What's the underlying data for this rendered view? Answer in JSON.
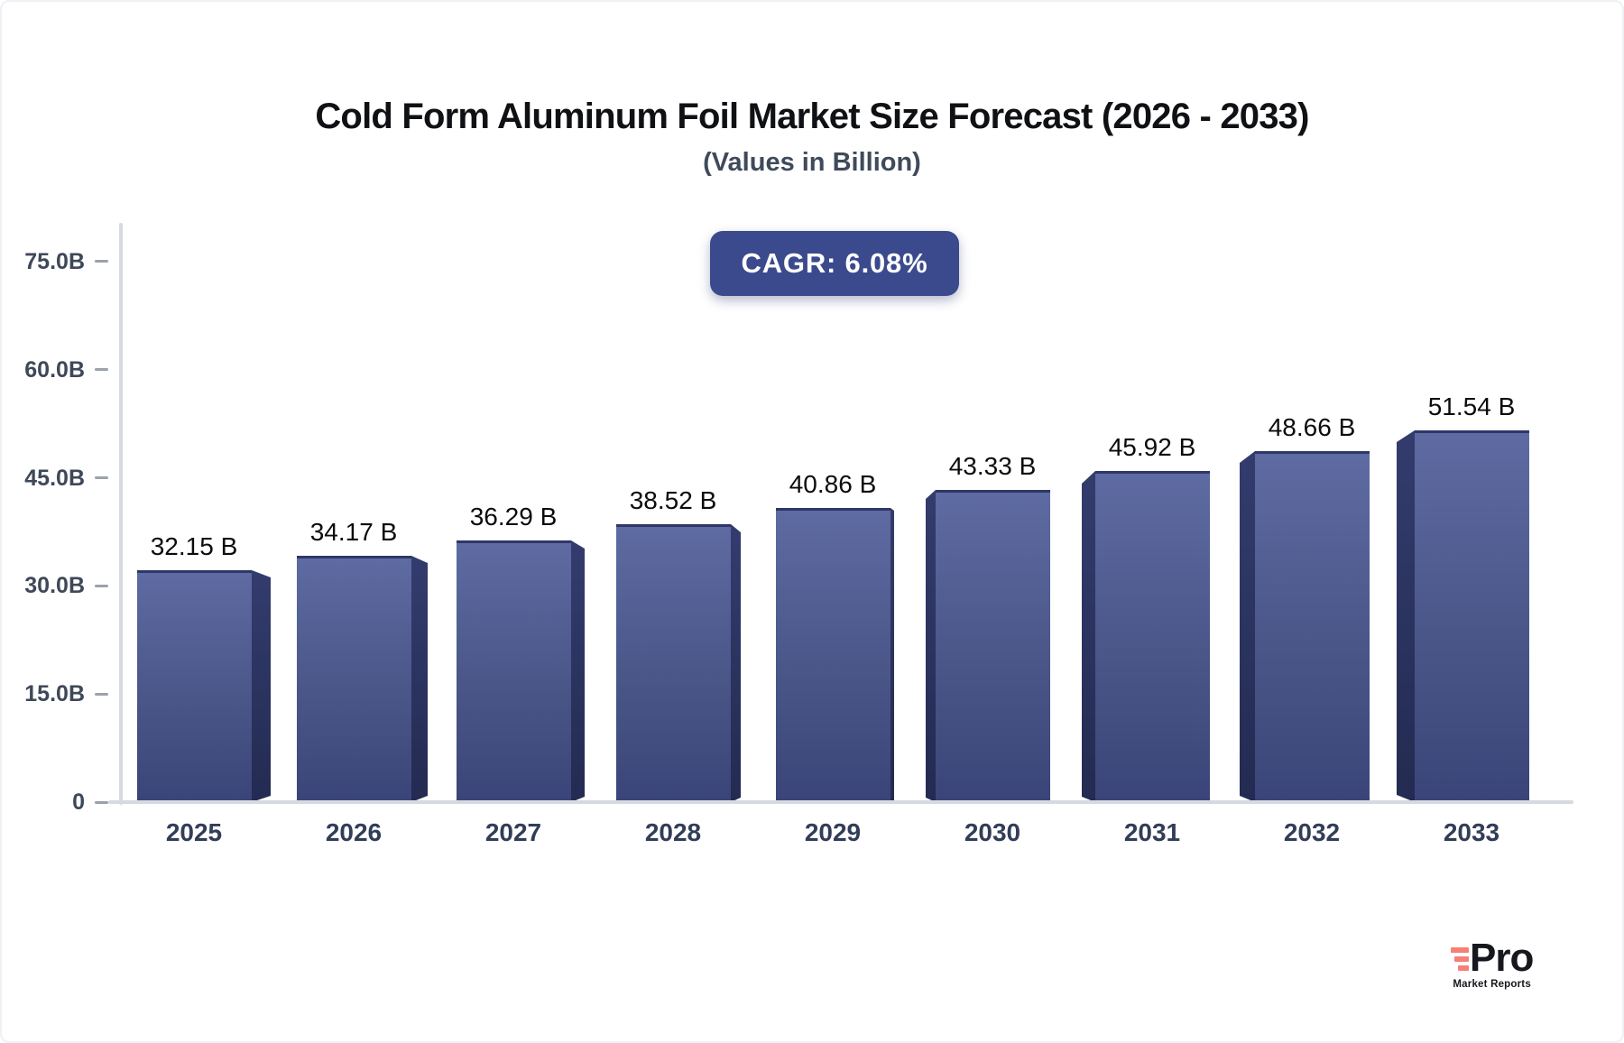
{
  "header": {
    "title": "Cold Form Aluminum Foil Market Size Forecast (2026 - 2033)",
    "subtitle": "(Values in Billion)"
  },
  "badge": {
    "label": "CAGR: 6.08%"
  },
  "chart_data": {
    "type": "bar",
    "title": "Cold Form Aluminum Foil Market Size Forecast (2026 - 2033)",
    "subtitle": "(Values in Billion)",
    "cagr": "6.08%",
    "categories": [
      "2025",
      "2026",
      "2027",
      "2028",
      "2029",
      "2030",
      "2031",
      "2032",
      "2033"
    ],
    "values": [
      32.15,
      34.17,
      36.29,
      38.52,
      40.86,
      43.33,
      45.92,
      48.66,
      51.54
    ],
    "value_labels": [
      "32.15 B",
      "34.17 B",
      "36.29 B",
      "38.52 B",
      "40.86 B",
      "43.33 B",
      "45.92 B",
      "48.66 B",
      "51.54 B"
    ],
    "ylim": [
      0,
      75
    ],
    "ytick_values": [
      0,
      15,
      30,
      45,
      60,
      75
    ],
    "ytick_labels": [
      "0",
      "15.0B",
      "30.0B",
      "45.0B",
      "60.0B",
      "75.0B"
    ],
    "grid": false,
    "legend": false
  },
  "logo": {
    "brand": "Pro",
    "tagline": "Market Reports"
  },
  "colors": {
    "bar_face_top": "#5e6ba2",
    "bar_face_mid": "#4a5688",
    "bar_face_bottom": "#3a4478",
    "bar_side_top": "#333c6d",
    "bar_side_bottom": "#232b52",
    "badge_bg": "#3b4a8c",
    "axis_line": "#d6d9e0",
    "logo_red": "#f87f77"
  }
}
